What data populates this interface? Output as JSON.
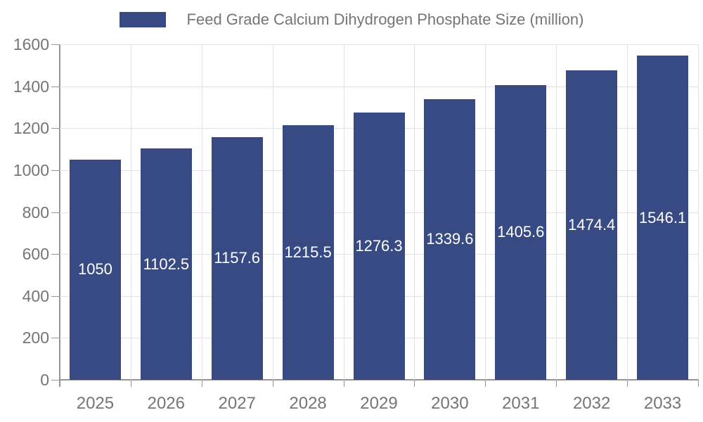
{
  "chart_data": {
    "type": "bar",
    "title": "Feed Grade Calcium Dihydrogen Phosphate Size (million)",
    "categories": [
      "2025",
      "2026",
      "2027",
      "2028",
      "2029",
      "2030",
      "2031",
      "2032",
      "2033"
    ],
    "values": [
      1050,
      1102.5,
      1157.6,
      1215.5,
      1276.3,
      1339.6,
      1405.6,
      1474.4,
      1546.1
    ],
    "yticks": [
      0,
      200,
      400,
      600,
      800,
      1000,
      1200,
      1400,
      1600
    ],
    "ylim": [
      0,
      1600
    ],
    "xlabel": "",
    "ylabel": "",
    "grid": true,
    "legend_position": "top-center",
    "bar_color": "#384a83",
    "value_label_color": "#ffffff",
    "axis_text_color": "#757575",
    "grid_color": "#e3e3e6",
    "axis_line_color": "#949494",
    "background_color": "#ffffff"
  }
}
